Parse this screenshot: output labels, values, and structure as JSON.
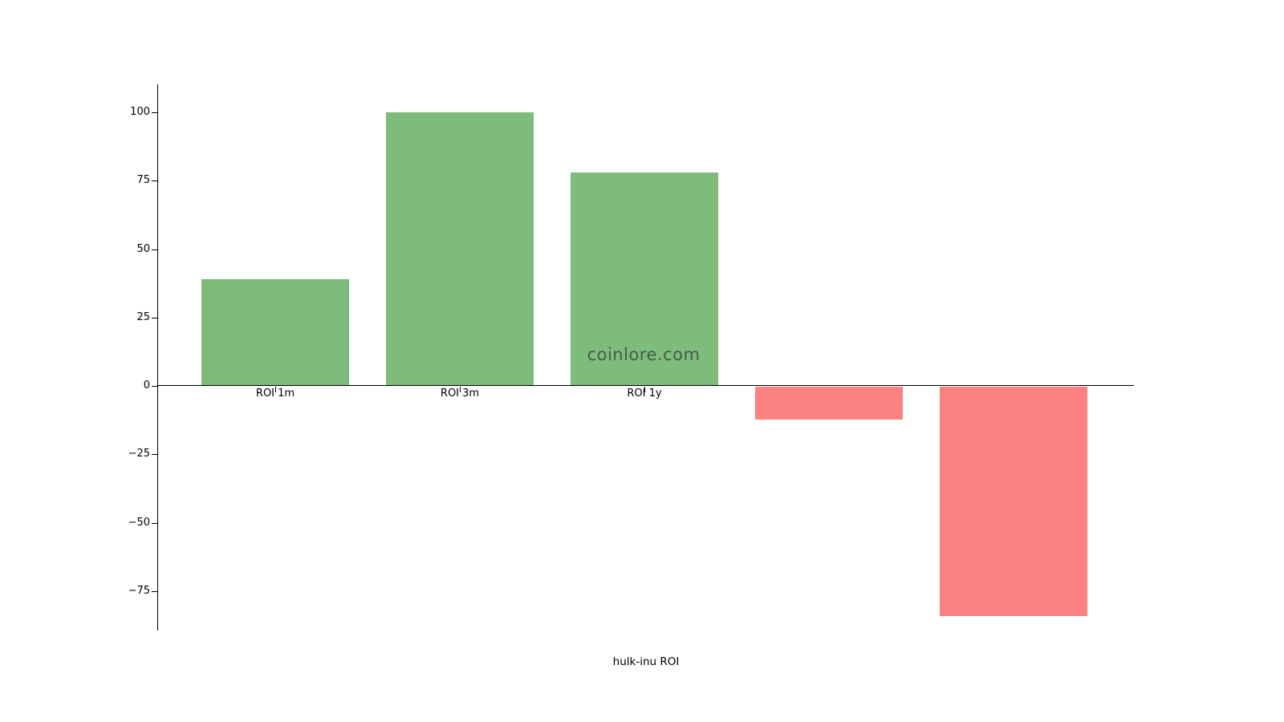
{
  "page": {
    "background_color": "#ffffff"
  },
  "chart_data": {
    "type": "bar",
    "title": "",
    "xlabel": "hulk-inu ROI",
    "ylabel": "",
    "watermark": "coinlore.com",
    "categories": [
      "ROI 1m",
      "ROI 3m",
      "ROI 1y",
      "",
      ""
    ],
    "values": [
      39,
      100,
      78,
      -12,
      -84
    ],
    "positive_color": "#7dbc7a",
    "negative_color": "#fc8181",
    "axis_color": "#000000",
    "y_ticks": [
      100,
      75,
      50,
      25,
      0,
      -25,
      -50,
      -75
    ],
    "ylim": [
      -89,
      110
    ],
    "grid": false,
    "legend": null
  }
}
